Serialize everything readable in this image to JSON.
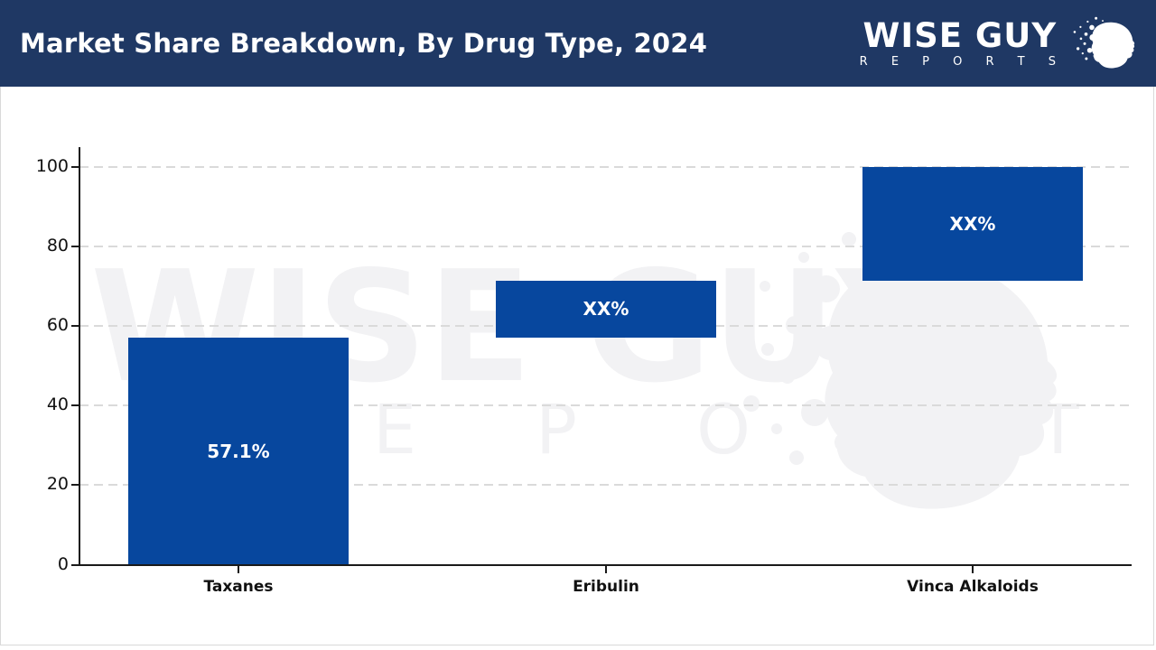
{
  "header": {
    "title": "Market Share Breakdown, By Drug Type, 2024",
    "logo": {
      "line1": "WISE GUY",
      "line2": "R E P O R T S"
    }
  },
  "watermark": {
    "line1": "WISE GUY",
    "line2": "R E P O R T S"
  },
  "chart_data": {
    "type": "bar",
    "subtype": "floating-waterfall",
    "title": "Market Share Breakdown, By Drug Type, 2024",
    "categories": [
      "Taxanes",
      "Eribulin",
      "Vinca Alkaloids"
    ],
    "segments": [
      {
        "category": "Taxanes",
        "start": 0,
        "end": 57.1,
        "value": 57.1,
        "label": "57.1%"
      },
      {
        "category": "Eribulin",
        "start": 57.1,
        "end": 71.4,
        "value": 14.3,
        "label": "XX%"
      },
      {
        "category": "Vinca Alkaloids",
        "start": 71.4,
        "end": 100,
        "value": 28.6,
        "label": "XX%"
      }
    ],
    "ylim": [
      0,
      100
    ],
    "yticks": [
      0,
      20,
      40,
      60,
      80,
      100
    ],
    "xlabel": "",
    "ylabel": "",
    "grid": "horizontal-dashed",
    "legend": "none",
    "bar_color": "#07479e",
    "bar_label_color": "#ffffff"
  },
  "colors": {
    "header_bg": "#1f3864",
    "bar": "#07479e",
    "grid": "#dadada",
    "axis": "#1a1a1a",
    "watermark": "#f2f2f4",
    "frame_border": "#d9d9d9"
  }
}
